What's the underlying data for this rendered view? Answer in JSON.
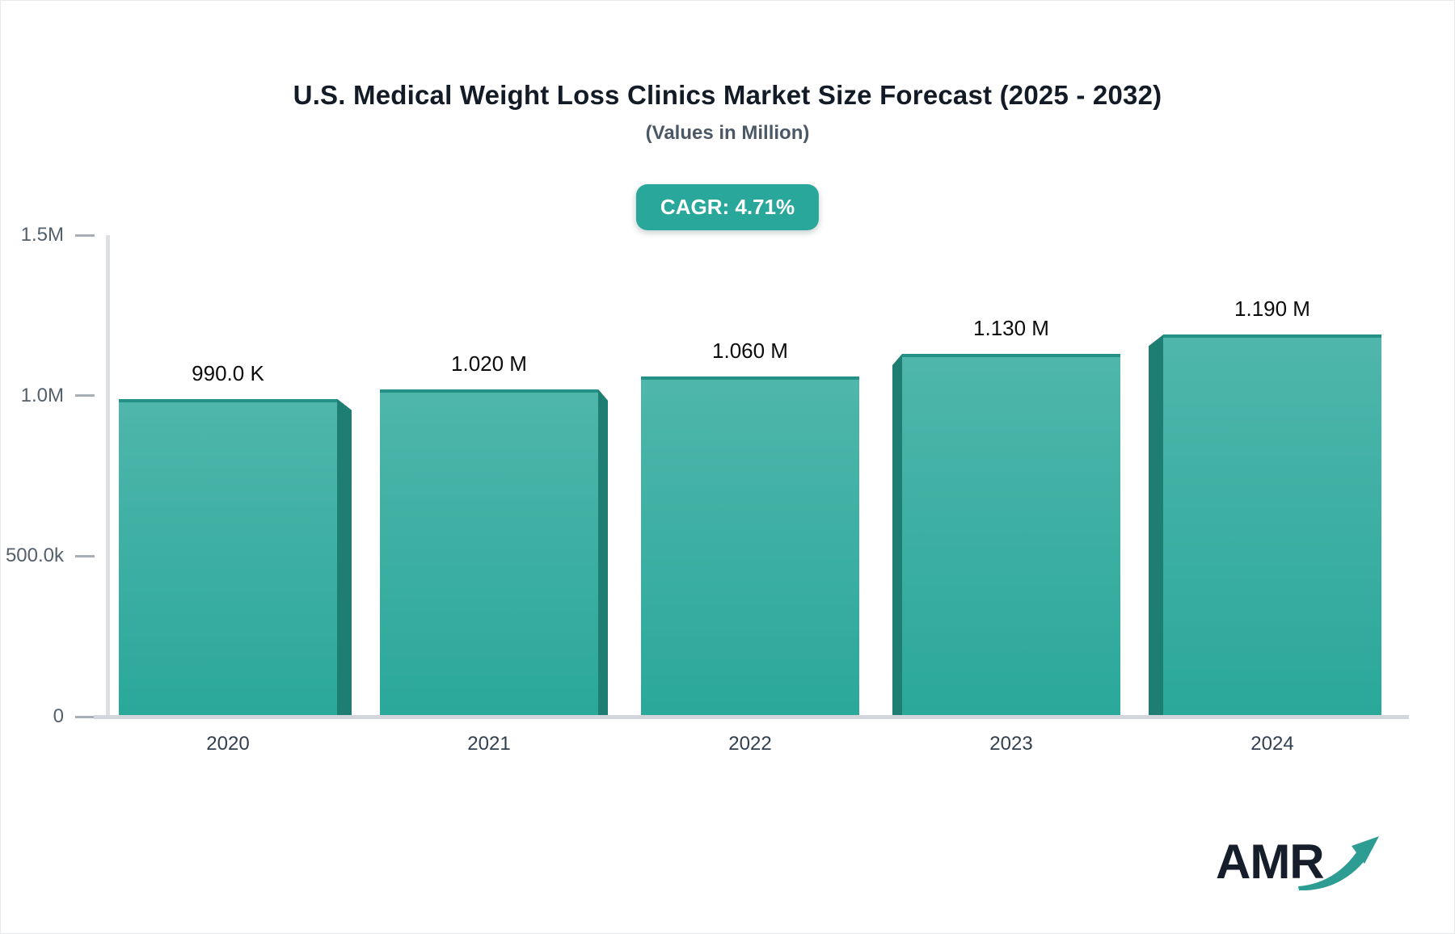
{
  "chart_data": {
    "type": "bar",
    "title": "U.S. Medical Weight Loss Clinics Market Size Forecast (2025 - 2032)",
    "subtitle": "(Values in Million)",
    "badge": "CAGR: 4.71%",
    "categories": [
      "2020",
      "2021",
      "2022",
      "2023",
      "2024"
    ],
    "values": [
      990000,
      1020000,
      1060000,
      1130000,
      1190000
    ],
    "value_labels": [
      "990.0 K",
      "1.020 M",
      "1.060 M",
      "1.130 M",
      "1.190 M"
    ],
    "ylim": [
      0,
      1500000
    ],
    "yticks": [
      {
        "value": 0,
        "label": "0"
      },
      {
        "value": 500000,
        "label": "500.0k"
      },
      {
        "value": 1000000,
        "label": "1.0M"
      },
      {
        "value": 1500000,
        "label": "1.5M"
      }
    ],
    "grid": false,
    "legend": false,
    "colors": {
      "bar_top": "#4fb6ab",
      "bar_bottom": "#2aa89a",
      "bar_side": "#1f7e74",
      "bar_top_edge": "#239185",
      "badge_background": "#2aa79b",
      "badge_text": "#ffffff",
      "axis_line": "#d3d7dc",
      "tick_text": "#55606d",
      "title_text": "#121b26"
    }
  },
  "logo": {
    "text": "AMR",
    "arrow_icon": "trend-up-arrow"
  }
}
